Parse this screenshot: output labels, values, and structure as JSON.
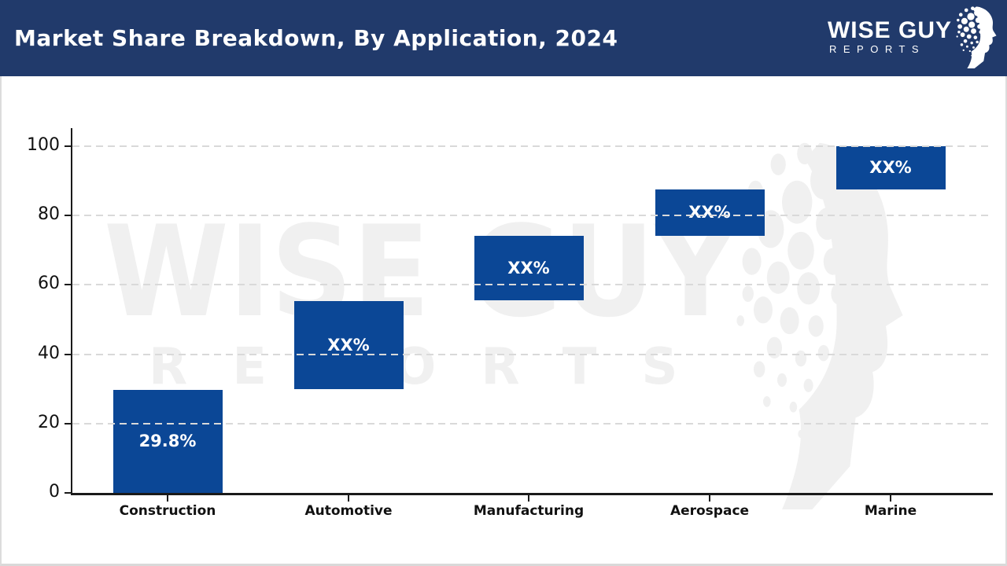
{
  "header": {
    "title": "Market Share Breakdown, By Application, 2024",
    "logo": {
      "name": "WISE GUY",
      "tagline": "REPORTS"
    }
  },
  "watermark": {
    "name": "WISE GUY",
    "tagline": "REPORTS"
  },
  "colors": {
    "header_bg": "#213a6b",
    "bar": "#0b4796",
    "grid": "#d9d9d9",
    "axis": "#1a1a1a",
    "bar_label": "#ffffff",
    "watermark": "#f0f0f0"
  },
  "chart_data": {
    "type": "bar",
    "subtype": "waterfall",
    "title": "Market Share Breakdown, By Application, 2024",
    "xlabel": "",
    "ylabel": "",
    "categories": [
      "Construction",
      "Automotive",
      "Manufacturing",
      "Aerospace",
      "Marine"
    ],
    "segments": [
      {
        "category": "Construction",
        "start": 0,
        "end": 29.8,
        "label": "29.8%"
      },
      {
        "category": "Automotive",
        "start": 30.0,
        "end": 55.3,
        "label": "XX%"
      },
      {
        "category": "Manufacturing",
        "start": 55.5,
        "end": 74.1,
        "label": "XX%"
      },
      {
        "category": "Aerospace",
        "start": 74.2,
        "end": 87.5,
        "label": "XX%"
      },
      {
        "category": "Marine",
        "start": 87.6,
        "end": 100.0,
        "label": "XX%"
      }
    ],
    "yticks": [
      0,
      20,
      40,
      60,
      80,
      100
    ],
    "ylim": [
      0,
      105
    ],
    "grid": true,
    "grid_style": "dashed",
    "legend": false
  }
}
